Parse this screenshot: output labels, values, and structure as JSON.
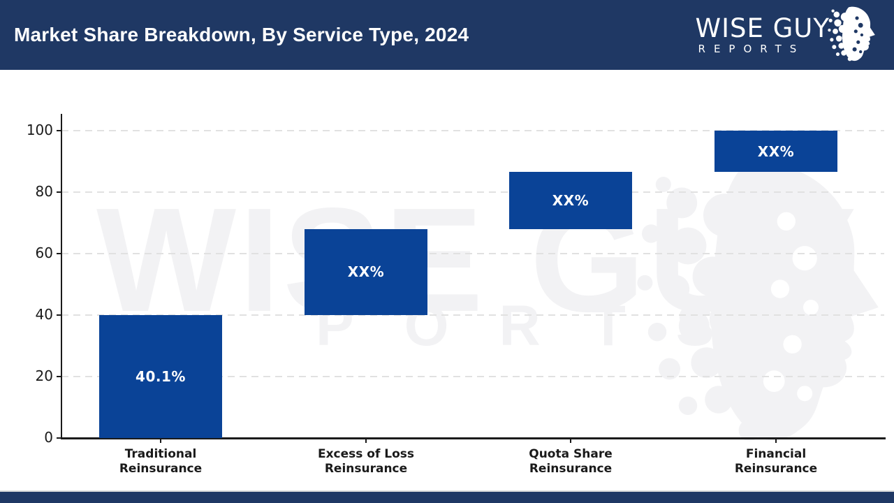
{
  "header": {
    "title": "Market Share Breakdown, By Service Type, 2024",
    "logo": {
      "line1": "WISE GUY",
      "line2": "REPORTS"
    }
  },
  "watermark": {
    "line1": "WISE GUY",
    "line2": "PORTS"
  },
  "colors": {
    "header_bg": "#1f3864",
    "bar": "#0a4397",
    "bar_label": "#ffffff",
    "gridline": "#e1e1e1",
    "axis": "#1a1a1a",
    "watermark": "#f2f2f4"
  },
  "chart_data": {
    "type": "bar",
    "subtype": "waterfall",
    "title": "Market Share Breakdown, By Service Type, 2024",
    "xlabel": "",
    "ylabel": "",
    "ylim": [
      0,
      105
    ],
    "yticks": [
      0,
      20,
      40,
      60,
      80,
      100
    ],
    "grid": true,
    "legend": false,
    "categories": [
      [
        "Traditional",
        "Reinsurance"
      ],
      [
        "Excess of Loss",
        "Reinsurance"
      ],
      [
        "Quota Share",
        "Reinsurance"
      ],
      [
        "Financial",
        "Reinsurance"
      ]
    ],
    "segments": [
      {
        "category": "Traditional Reinsurance",
        "start": 0,
        "end": 40.1,
        "label": "40.1%"
      },
      {
        "category": "Excess of Loss Reinsurance",
        "start": 40.1,
        "end": 68.0,
        "label": "XX%"
      },
      {
        "category": "Quota Share Reinsurance",
        "start": 68.0,
        "end": 86.5,
        "label": "XX%"
      },
      {
        "category": "Financial Reinsurance",
        "start": 86.5,
        "end": 100,
        "label": "XX%"
      }
    ]
  }
}
